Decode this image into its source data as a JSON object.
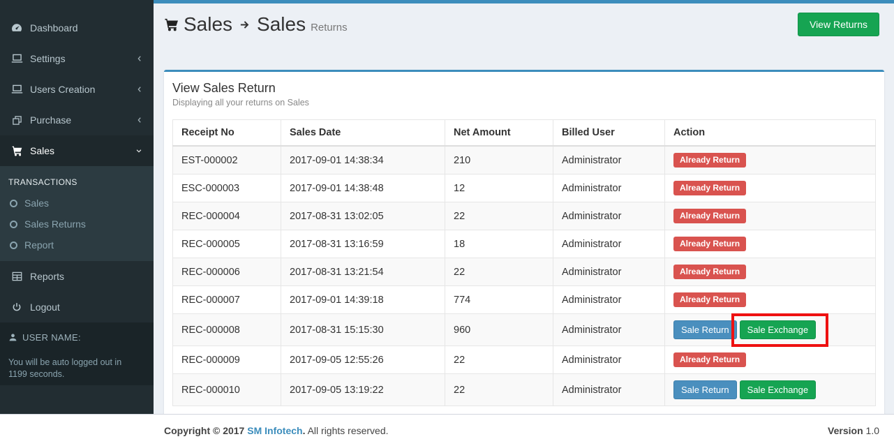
{
  "colors": {
    "accent": "#3c8dbc",
    "sidebar_bg": "#222d32",
    "sidebar_active_bg": "#1e282c",
    "submenu_bg": "#2c3b41",
    "green": "#16a452",
    "blue_btn": "#4a8fbe",
    "red": "#d9534f",
    "annotation_red": "#ee1111",
    "content_bg": "#ecf0f5"
  },
  "sidebar": {
    "items": [
      {
        "label": "Dashboard",
        "icon": "dashboard-icon",
        "active": false,
        "chevron": "none"
      },
      {
        "label": "Settings",
        "icon": "laptop-icon",
        "active": false,
        "chevron": "left"
      },
      {
        "label": "Users Creation",
        "icon": "laptop-icon",
        "active": false,
        "chevron": "left"
      },
      {
        "label": "Purchase",
        "icon": "copy-icon",
        "active": false,
        "chevron": "left"
      },
      {
        "label": "Sales",
        "icon": "cart-icon",
        "active": true,
        "chevron": "down"
      }
    ],
    "submenu_header": "TRANSACTIONS",
    "submenu": [
      {
        "label": "Sales"
      },
      {
        "label": "Sales Returns"
      },
      {
        "label": "Report"
      }
    ],
    "bottom_items": [
      {
        "label": "Reports",
        "icon": "table-icon"
      },
      {
        "label": "Logout",
        "icon": "power-icon"
      }
    ],
    "user_label": "USER NAME:",
    "auto_logout_line1": "You will be auto logged out in",
    "auto_logout_line2": "1199 seconds."
  },
  "header": {
    "title_primary": "Sales",
    "title_secondary": "Sales",
    "title_sub": "Returns",
    "view_returns_label": "View Returns"
  },
  "panel": {
    "title": "View Sales Return",
    "subtitle": "Displaying all your returns on Sales"
  },
  "table": {
    "columns": [
      "Receipt No",
      "Sales Date",
      "Net Amount",
      "Billed User",
      "Action"
    ],
    "action_labels": {
      "already_return": "Already Return",
      "sale_return": "Sale Return",
      "sale_exchange": "Sale Exchange"
    },
    "rows": [
      {
        "receipt_no": "EST-000002",
        "sales_date": "2017-09-01 14:38:34",
        "net_amount": "210",
        "billed_user": "Administrator",
        "actions": [
          "already_return"
        ],
        "highlight": null
      },
      {
        "receipt_no": "ESC-000003",
        "sales_date": "2017-09-01 14:38:48",
        "net_amount": "12",
        "billed_user": "Administrator",
        "actions": [
          "already_return"
        ],
        "highlight": null
      },
      {
        "receipt_no": "REC-000004",
        "sales_date": "2017-08-31 13:02:05",
        "net_amount": "22",
        "billed_user": "Administrator",
        "actions": [
          "already_return"
        ],
        "highlight": null
      },
      {
        "receipt_no": "REC-000005",
        "sales_date": "2017-08-31 13:16:59",
        "net_amount": "18",
        "billed_user": "Administrator",
        "actions": [
          "already_return"
        ],
        "highlight": null
      },
      {
        "receipt_no": "REC-000006",
        "sales_date": "2017-08-31 13:21:54",
        "net_amount": "22",
        "billed_user": "Administrator",
        "actions": [
          "already_return"
        ],
        "highlight": null
      },
      {
        "receipt_no": "REC-000007",
        "sales_date": "2017-09-01 14:39:18",
        "net_amount": "774",
        "billed_user": "Administrator",
        "actions": [
          "already_return"
        ],
        "highlight": null
      },
      {
        "receipt_no": "REC-000008",
        "sales_date": "2017-08-31 15:15:30",
        "net_amount": "960",
        "billed_user": "Administrator",
        "actions": [
          "sale_return",
          "sale_exchange"
        ],
        "highlight": "sale_exchange"
      },
      {
        "receipt_no": "REC-000009",
        "sales_date": "2017-09-05 12:55:26",
        "net_amount": "22",
        "billed_user": "Administrator",
        "actions": [
          "already_return"
        ],
        "highlight": null
      },
      {
        "receipt_no": "REC-000010",
        "sales_date": "2017-09-05 13:19:22",
        "net_amount": "22",
        "billed_user": "Administrator",
        "actions": [
          "sale_return",
          "sale_exchange"
        ],
        "highlight": null
      }
    ]
  },
  "footer": {
    "copyright_prefix": "Copyright © 2017 ",
    "company": "SM Infotech",
    "dot": ".",
    "copyright_suffix": " All rights reserved.",
    "version_label": "Version",
    "version_value": "1.0"
  }
}
